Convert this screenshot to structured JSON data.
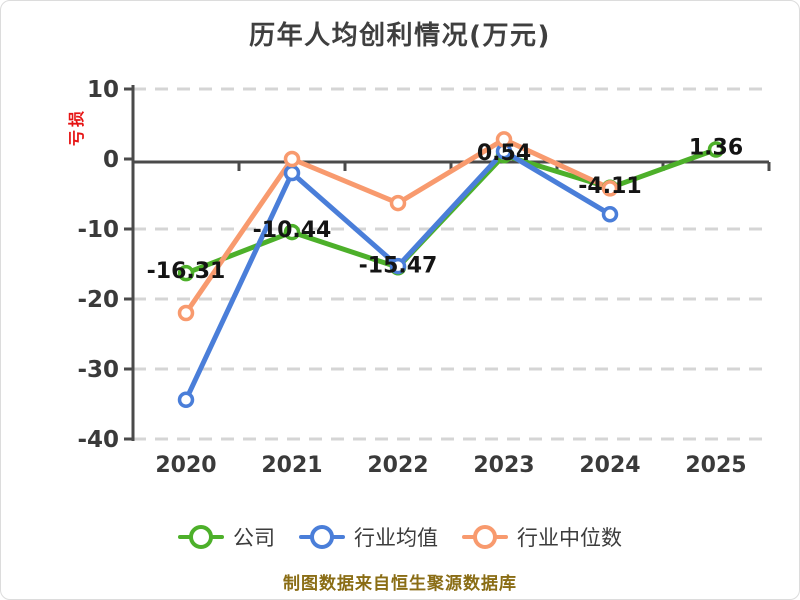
{
  "title": {
    "text": "历年人均创利情况(万元)"
  },
  "footer": {
    "text": "制图数据来自恒生聚源数据库",
    "color": "#8a6d15"
  },
  "chart_data": {
    "type": "line",
    "title": "历年人均创利情况(万元)",
    "x_categories": [
      "2020",
      "2021",
      "2022",
      "2023",
      "2024",
      "2025"
    ],
    "y_ticks": [
      10,
      0,
      -10,
      -20,
      -30,
      -40
    ],
    "y_range": [
      -40,
      10
    ],
    "loss_label": "亏损",
    "grid": "horizontal-dashed",
    "legend_position": "bottom",
    "series": [
      {
        "name": "公司",
        "color": "#4db02a",
        "values": [
          -16.31,
          -10.44,
          -15.47,
          0.54,
          -4.11,
          1.36
        ]
      },
      {
        "name": "行业均值",
        "color": "#4a7ed9",
        "values": [
          -34.4,
          -2.0,
          -15.3,
          1.1,
          -7.9,
          null
        ]
      },
      {
        "name": "行业中位数",
        "color": "#f89a6e",
        "values": [
          -22.0,
          0.0,
          -6.3,
          2.8,
          -4.2,
          null
        ]
      }
    ],
    "point_labels": [
      "-16.31",
      "-10.44",
      "-15.47",
      "0.54",
      "-4.11",
      "1.36"
    ],
    "colors": {
      "axis": "#4a4a4a",
      "grid": "#d5d5d5",
      "tick_text": "#3a3a3a",
      "value_text": "#141414",
      "title_text": "#3f3f3f",
      "loss_text": "#e61414"
    }
  }
}
